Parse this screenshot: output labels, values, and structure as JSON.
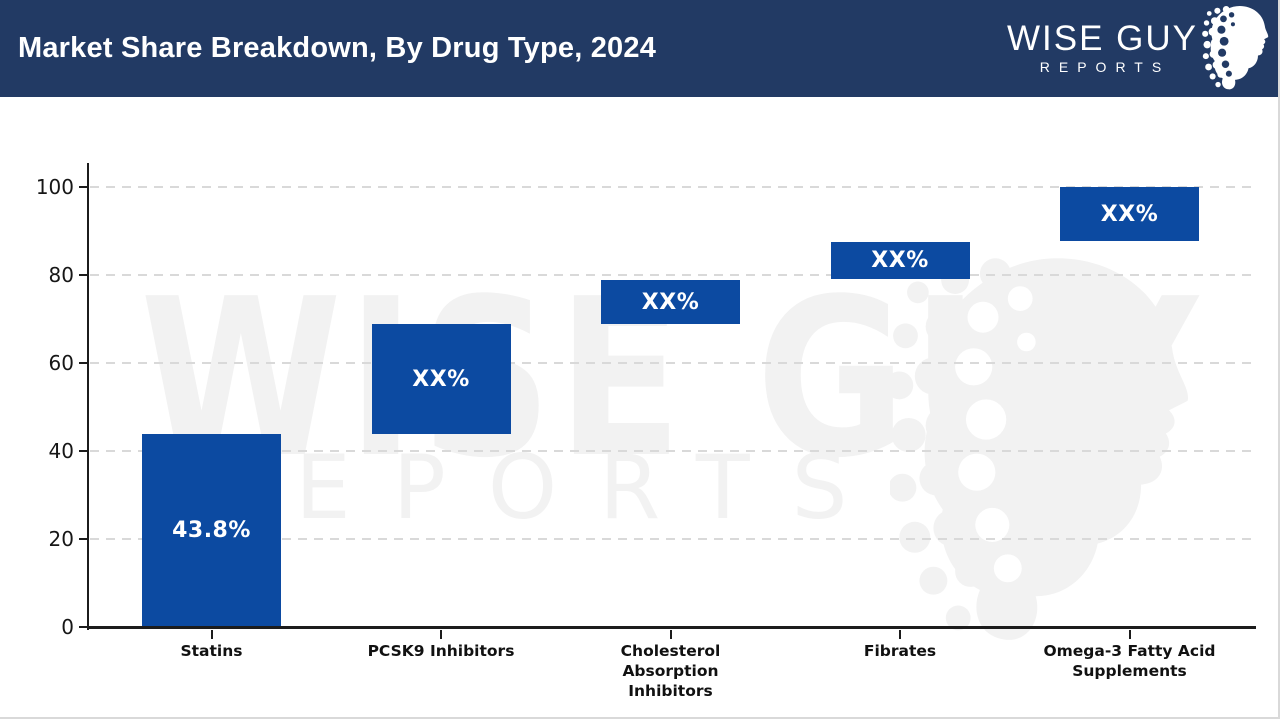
{
  "header": {
    "title": "Market Share Breakdown, By Drug Type, 2024",
    "logo": {
      "brand_line1": "WISE GUY",
      "brand_line2": "REPORTS"
    }
  },
  "watermark": {
    "line1": "WISE GUY",
    "line2": "REPORTS"
  },
  "chart_data": {
    "type": "bar",
    "subtype": "waterfall",
    "title": "Market Share Breakdown, By Drug Type, 2024",
    "categories": [
      "Statins",
      "PCSK9 Inhibitors",
      "Cholesterol Absorption Inhibitors",
      "Fibrates",
      "Omega-3 Fatty Acid Supplements"
    ],
    "bars": [
      {
        "category": "Statins",
        "category_lines": [
          "Statins"
        ],
        "start": 0,
        "end": 43.8,
        "label": "43.8%"
      },
      {
        "category": "PCSK9 Inhibitors",
        "category_lines": [
          "PCSK9 Inhibitors"
        ],
        "start": 43.8,
        "end": 68.8,
        "label": "XX%"
      },
      {
        "category": "Cholesterol Absorption Inhibitors",
        "category_lines": [
          "Cholesterol",
          "Absorption",
          "Inhibitors"
        ],
        "start": 68.8,
        "end": 78.8,
        "label": "XX%"
      },
      {
        "category": "Fibrates",
        "category_lines": [
          "Fibrates"
        ],
        "start": 79.2,
        "end": 87.5,
        "label": "XX%"
      },
      {
        "category": "Omega-3 Fatty Acid Supplements",
        "category_lines": [
          "Omega-3 Fatty Acid",
          "Supplements"
        ],
        "start": 87.7,
        "end": 100,
        "label": "XX%"
      }
    ],
    "xlabel": "",
    "ylabel": "",
    "ylim": [
      0,
      100
    ],
    "yticks": [
      0,
      20,
      40,
      60,
      80,
      100
    ],
    "grid": "horizontal-dashed",
    "legend": null,
    "colors": {
      "bar": "#0c4aa1",
      "bar_label": "#ffffff",
      "header_bg": "#223a64",
      "axis": "#1c1c1c",
      "gridline": "#d9d9d9",
      "watermark": "#f2f2f2",
      "tick_label": "#161616"
    }
  }
}
